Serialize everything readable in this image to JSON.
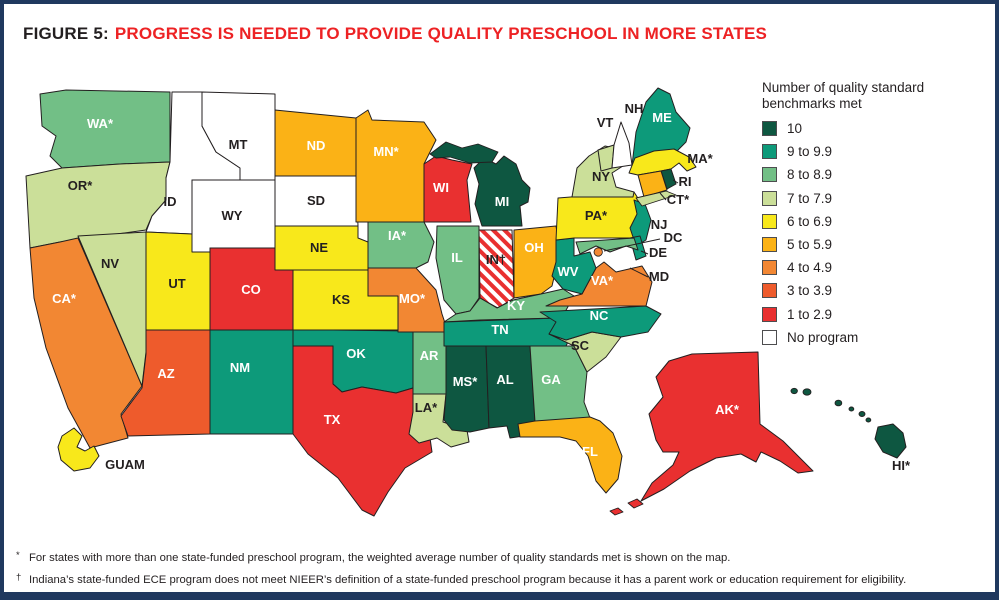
{
  "frame": {
    "border_color": "#20395f"
  },
  "header": {
    "figure_label": "FIGURE 5:",
    "title": "PROGRESS IS NEEDED TO PROVIDE QUALITY PRESCHOOL IN MORE STATES",
    "title_color": "#ed2224",
    "label_color": "#231f20"
  },
  "legend": {
    "title_line1": "Number of quality standard",
    "title_line2": "benchmarks met",
    "items": [
      {
        "label": "10",
        "color": "#0e5741"
      },
      {
        "label": "9 to 9.9",
        "color": "#0d9a7a"
      },
      {
        "label": "8 to 8.9",
        "color": "#72bf86"
      },
      {
        "label": "7 to 7.9",
        "color": "#cbdf99"
      },
      {
        "label": "6 to 6.9",
        "color": "#f8e81b"
      },
      {
        "label": "5 to 5.9",
        "color": "#fbb216"
      },
      {
        "label": "4 to 4.9",
        "color": "#f28733"
      },
      {
        "label": "3 to 3.9",
        "color": "#ee5b2c"
      },
      {
        "label": "1 to 2.9",
        "color": "#e93030"
      },
      {
        "label": "No program",
        "color": "#ffffff"
      }
    ]
  },
  "footnotes": [
    {
      "marker": "*",
      "text": "For states with more than one state-funded preschool program, the weighted average number of quality standards met is shown on the map."
    },
    {
      "marker": "†",
      "text": "Indiana’s state-funded ECE program does not meet NIEER’s definition of a state-funded preschool program because it has a parent work or education requirement for eligibility."
    }
  ],
  "chart_data": {
    "type": "choropleth",
    "title": "PROGRESS IS NEEDED TO PROVIDE QUALITY PRESCHOOL IN MORE STATES",
    "legend_title": "Number of quality standard benchmarks met",
    "categories": [
      "10",
      "9 to 9.9",
      "8 to 8.9",
      "7 to 7.9",
      "6 to 6.9",
      "5 to 5.9",
      "4 to 4.9",
      "3 to 3.9",
      "1 to 2.9",
      "No program"
    ],
    "states": [
      {
        "id": "WA",
        "label": "WA*",
        "category": "8 to 8.9",
        "label_color": "#ffffff"
      },
      {
        "id": "OR",
        "label": "OR*",
        "category": "7 to 7.9",
        "label_color": "#231f20"
      },
      {
        "id": "CA",
        "label": "CA*",
        "category": "4 to 4.9",
        "label_color": "#ffffff"
      },
      {
        "id": "NV",
        "label": "NV",
        "category": "7 to 7.9",
        "label_color": "#231f20"
      },
      {
        "id": "ID",
        "label": "ID",
        "category": "No program",
        "label_color": "#231f20"
      },
      {
        "id": "MT",
        "label": "MT",
        "category": "No program",
        "label_color": "#231f20"
      },
      {
        "id": "WY",
        "label": "WY",
        "category": "No program",
        "label_color": "#231f20"
      },
      {
        "id": "UT",
        "label": "UT",
        "category": "6 to 6.9",
        "label_color": "#231f20"
      },
      {
        "id": "AZ",
        "label": "AZ",
        "category": "3 to 3.9",
        "label_color": "#ffffff"
      },
      {
        "id": "NM",
        "label": "NM",
        "category": "9 to 9.9",
        "label_color": "#ffffff"
      },
      {
        "id": "CO",
        "label": "CO",
        "category": "1 to 2.9",
        "label_color": "#ffffff"
      },
      {
        "id": "ND",
        "label": "ND",
        "category": "5 to 5.9",
        "label_color": "#ffffff"
      },
      {
        "id": "SD",
        "label": "SD",
        "category": "No program",
        "label_color": "#231f20"
      },
      {
        "id": "NE",
        "label": "NE",
        "category": "6 to 6.9",
        "label_color": "#231f20"
      },
      {
        "id": "KS",
        "label": "KS",
        "category": "6 to 6.9",
        "label_color": "#231f20"
      },
      {
        "id": "OK",
        "label": "OK",
        "category": "9 to 9.9",
        "label_color": "#ffffff"
      },
      {
        "id": "TX",
        "label": "TX",
        "category": "1 to 2.9",
        "label_color": "#ffffff"
      },
      {
        "id": "MN",
        "label": "MN*",
        "category": "5 to 5.9",
        "label_color": "#ffffff"
      },
      {
        "id": "IA",
        "label": "IA*",
        "category": "8 to 8.9",
        "label_color": "#ffffff"
      },
      {
        "id": "MO",
        "label": "MO*",
        "category": "4 to 4.9",
        "label_color": "#ffffff"
      },
      {
        "id": "AR",
        "label": "AR",
        "category": "8 to 8.9",
        "label_color": "#ffffff"
      },
      {
        "id": "LA",
        "label": "LA*",
        "category": "7 to 7.9",
        "label_color": "#231f20"
      },
      {
        "id": "WI",
        "label": "WI",
        "category": "1 to 2.9",
        "label_color": "#ffffff"
      },
      {
        "id": "IL",
        "label": "IL",
        "category": "8 to 8.9",
        "label_color": "#ffffff"
      },
      {
        "id": "IN",
        "label": "IN†",
        "category": "hatched (see † footnote)",
        "label_color": "#231f20"
      },
      {
        "id": "MI",
        "label": "MI",
        "category": "10",
        "label_color": "#ffffff"
      },
      {
        "id": "OH",
        "label": "OH",
        "category": "5 to 5.9",
        "label_color": "#ffffff"
      },
      {
        "id": "KY",
        "label": "KY",
        "category": "8 to 8.9",
        "label_color": "#ffffff"
      },
      {
        "id": "TN",
        "label": "TN",
        "category": "9 to 9.9",
        "label_color": "#ffffff"
      },
      {
        "id": "MS",
        "label": "MS*",
        "category": "10",
        "label_color": "#ffffff"
      },
      {
        "id": "AL",
        "label": "AL",
        "category": "10",
        "label_color": "#ffffff"
      },
      {
        "id": "GA",
        "label": "GA",
        "category": "8 to 8.9",
        "label_color": "#ffffff"
      },
      {
        "id": "FL",
        "label": "FL",
        "category": "5 to 5.9",
        "label_color": "#ffffff"
      },
      {
        "id": "SC",
        "label": "SC",
        "category": "7 to 7.9",
        "label_color": "#231f20"
      },
      {
        "id": "NC",
        "label": "NC",
        "category": "9 to 9.9",
        "label_color": "#ffffff"
      },
      {
        "id": "VA",
        "label": "VA*",
        "category": "4 to 4.9",
        "label_color": "#ffffff"
      },
      {
        "id": "WV",
        "label": "WV",
        "category": "9 to 9.9",
        "label_color": "#ffffff"
      },
      {
        "id": "PA",
        "label": "PA*",
        "category": "6 to 6.9",
        "label_color": "#231f20"
      },
      {
        "id": "NY",
        "label": "NY",
        "category": "7 to 7.9",
        "label_color": "#231f20"
      },
      {
        "id": "NJ",
        "label": "NJ",
        "category": "9 to 9.9",
        "label_color": "#231f20"
      },
      {
        "id": "DE",
        "label": "DE",
        "category": "9 to 9.9",
        "label_color": "#231f20"
      },
      {
        "id": "MD",
        "label": "MD",
        "category": "8 to 8.9",
        "label_color": "#231f20"
      },
      {
        "id": "DC",
        "label": "DC",
        "category": "4 to 4.9",
        "label_color": "#231f20"
      },
      {
        "id": "VT",
        "label": "VT",
        "category": "7 to 7.9",
        "label_color": "#231f20"
      },
      {
        "id": "NH",
        "label": "NH",
        "category": "No program",
        "label_color": "#231f20"
      },
      {
        "id": "ME",
        "label": "ME",
        "category": "9 to 9.9",
        "label_color": "#ffffff"
      },
      {
        "id": "MA",
        "label": "MA*",
        "category": "6 to 6.9",
        "label_color": "#231f20"
      },
      {
        "id": "RI",
        "label": "RI",
        "category": "10",
        "label_color": "#231f20"
      },
      {
        "id": "CT",
        "label": "CT*",
        "category": "5 to 5.9",
        "label_color": "#231f20"
      },
      {
        "id": "AK",
        "label": "AK*",
        "category": "1 to 2.9",
        "label_color": "#ffffff"
      },
      {
        "id": "HI",
        "label": "HI*",
        "category": "10",
        "label_color": "#231f20"
      },
      {
        "id": "GU",
        "label": "GUAM",
        "category": "6 to 6.9",
        "label_color": "#231f20"
      }
    ]
  }
}
